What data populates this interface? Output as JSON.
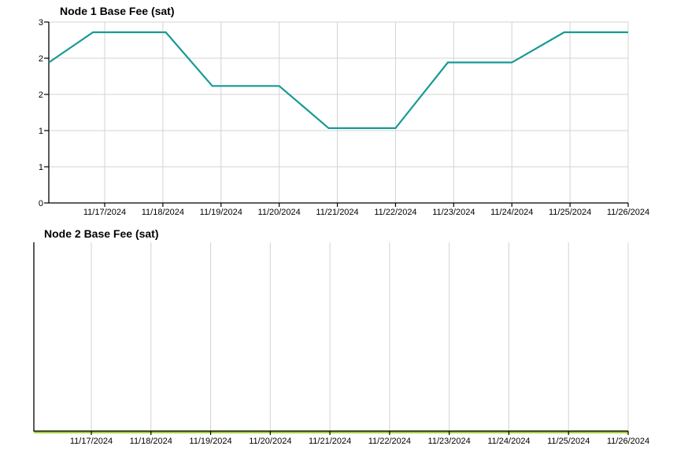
{
  "page": {
    "background_color": "#ffffff",
    "text_color": "#000000",
    "axis_color": "#000000",
    "gridline_color": "#d3d3d3"
  },
  "chart_data": [
    {
      "type": "line",
      "title": "Node 1 Base Fee (sat)",
      "xlabel": "",
      "ylabel": "",
      "legend": "none",
      "grid": "horizontal-and-vertical",
      "ylim": [
        0,
        3
      ],
      "y_tick_values": [
        0,
        0.6,
        1.2,
        1.8,
        2.4,
        3
      ],
      "y_tick_labels": [
        "0",
        "1",
        "1",
        "2",
        "2",
        "3"
      ],
      "x_tick_labels": [
        "11/17/2024",
        "11/18/2024",
        "11/19/2024",
        "11/20/2024",
        "11/21/2024",
        "11/22/2024",
        "11/23/2024",
        "11/24/2024",
        "11/25/2024",
        "11/26/2024"
      ],
      "series": [
        {
          "name": "Node 1 Base Fee",
          "color": "#189a94",
          "x": [
            "11/16/2024",
            "11/17/2024",
            "11/18/2024",
            "11/19/2024",
            "11/20/2024",
            "11/21/2024",
            "11/22/2024",
            "11/23/2024",
            "11/24/2024",
            "11/25/2024",
            "11/26/2024"
          ],
          "values": [
            2.33,
            2.83,
            2.83,
            1.94,
            1.94,
            1.24,
            1.24,
            2.33,
            2.33,
            2.83,
            2.83
          ]
        }
      ],
      "line_vertices_day_value": [
        [
          16.04,
          2.33
        ],
        [
          16.8,
          2.83
        ],
        [
          18.05,
          2.83
        ],
        [
          18.85,
          1.94
        ],
        [
          20.0,
          1.94
        ],
        [
          20.85,
          1.24
        ],
        [
          22.0,
          1.24
        ],
        [
          22.9,
          2.33
        ],
        [
          24.0,
          2.33
        ],
        [
          24.9,
          2.83
        ],
        [
          26.0,
          2.83
        ]
      ]
    },
    {
      "type": "line",
      "title": "Node 2 Base Fee (sat)",
      "xlabel": "",
      "ylabel": "",
      "legend": "none",
      "grid": "vertical-only",
      "ylim": [
        0,
        1
      ],
      "y_tick_values": [],
      "y_tick_labels": [],
      "x_tick_labels": [
        "11/17/2024",
        "11/18/2024",
        "11/19/2024",
        "11/20/2024",
        "11/21/2024",
        "11/22/2024",
        "11/23/2024",
        "11/24/2024",
        "11/25/2024",
        "11/26/2024"
      ],
      "series": [
        {
          "name": "Node 2 Base Fee",
          "color": "#9acd32",
          "x": [
            "11/16/2024",
            "11/17/2024",
            "11/18/2024",
            "11/19/2024",
            "11/20/2024",
            "11/21/2024",
            "11/22/2024",
            "11/23/2024",
            "11/24/2024",
            "11/25/2024",
            "11/26/2024"
          ],
          "values": [
            0,
            0,
            0,
            0,
            0,
            0,
            0,
            0,
            0,
            0,
            0
          ]
        }
      ],
      "line_vertices_day_value": [
        [
          16.04,
          0
        ],
        [
          26.0,
          0
        ]
      ]
    }
  ]
}
